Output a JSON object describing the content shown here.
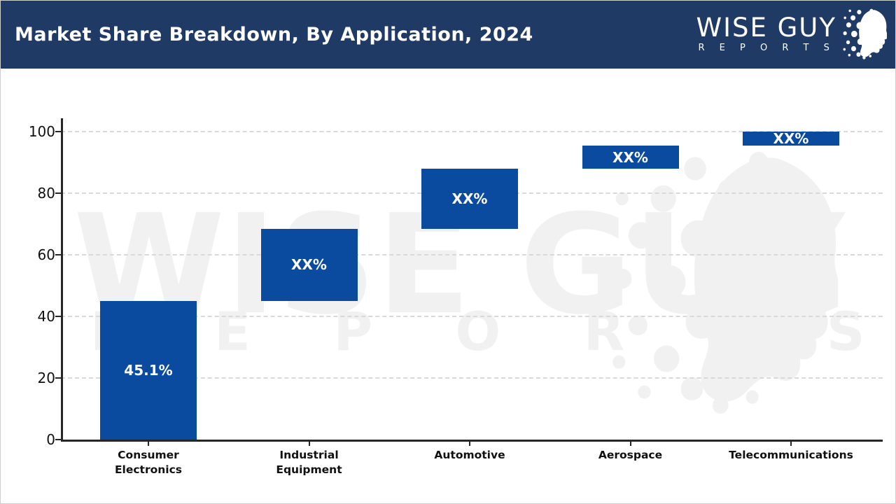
{
  "header": {
    "title": "Market Share Breakdown, By Application, 2024",
    "logo": {
      "wordmark": "WISE GUY",
      "subtext": "R E P O R T S"
    }
  },
  "watermark": {
    "wordmark": "WISE GUY",
    "subtext": "R E P O R T S"
  },
  "chart_data": {
    "type": "bar",
    "subtype": "stacked-percentage-waterfall",
    "title": "Market Share Breakdown, By Application, 2024",
    "categories": [
      "Consumer Electronics",
      "Industrial Equipment",
      "Automotive",
      "Aerospace",
      "Telecommunications"
    ],
    "xtick_labels": [
      "Consumer\nElectronics",
      "Industrial\nEquipment",
      "Automotive",
      "Aerospace",
      "Telecommunications"
    ],
    "segments": [
      {
        "category": "Consumer Electronics",
        "start": 0,
        "end": 45.1,
        "value_label": "45.1%"
      },
      {
        "category": "Industrial Equipment",
        "start": 45.1,
        "end": 68.4,
        "value_label": "XX%"
      },
      {
        "category": "Automotive",
        "start": 68.4,
        "end": 88.0,
        "value_label": "XX%"
      },
      {
        "category": "Aerospace",
        "start": 88.0,
        "end": 95.4,
        "value_label": "XX%"
      },
      {
        "category": "Telecommunications",
        "start": 95.4,
        "end": 100.0,
        "value_label": "XX%"
      }
    ],
    "yticks": [
      0,
      20,
      40,
      60,
      80,
      100
    ],
    "ylim": [
      0,
      104.5
    ],
    "xlabel": "",
    "ylabel": "",
    "grid": "horizontal-dashed",
    "legend": "none",
    "bar_color": "#0b4b9f",
    "bar_label_color": "#ffffff"
  },
  "colors": {
    "header_background": "#203a66",
    "bar_fill": "#0b4b9f",
    "axis": "#262626",
    "gridline": "#d9d9d9",
    "watermark": "#f1f1f1",
    "page_background": "#ffffff",
    "title_text": "#ffffff",
    "tick_text": "#111111"
  }
}
